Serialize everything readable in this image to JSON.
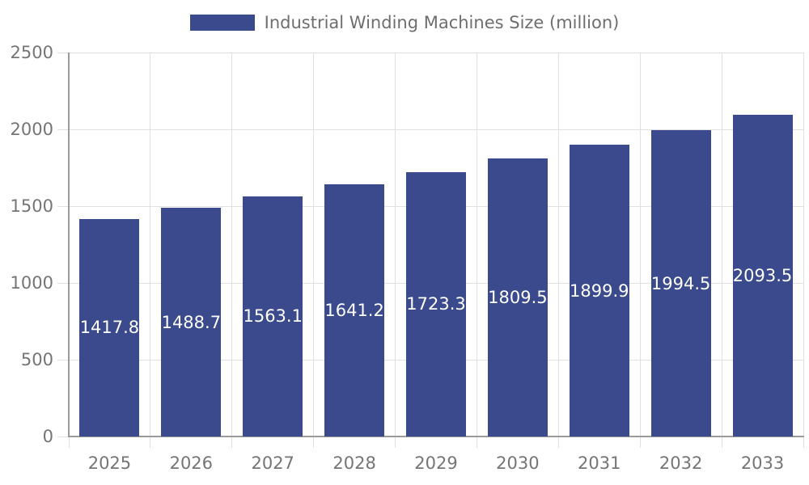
{
  "chart_data": {
    "type": "bar",
    "legend": "Industrial Winding Machines Size (million)",
    "legend_position": "top",
    "categories": [
      "2025",
      "2026",
      "2027",
      "2028",
      "2029",
      "2030",
      "2031",
      "2032",
      "2033"
    ],
    "values": [
      1417.8,
      1488.7,
      1563.1,
      1641.2,
      1723.3,
      1809.5,
      1899.9,
      1994.5,
      2093.5
    ],
    "xlabel": "",
    "ylabel": "",
    "ylim": [
      0,
      2500
    ],
    "yticks": [
      0,
      500,
      1000,
      1500,
      2000,
      2500
    ],
    "grid": true,
    "bar_label_position": "inside-center",
    "colors": {
      "bar": "#3A4A8C",
      "grid": "#E0E0E0",
      "axis": "#9B9B9B",
      "tick_text": "#757575",
      "legend_text": "#6E6E6E",
      "bar_label_text": "#FFFFFF"
    }
  }
}
